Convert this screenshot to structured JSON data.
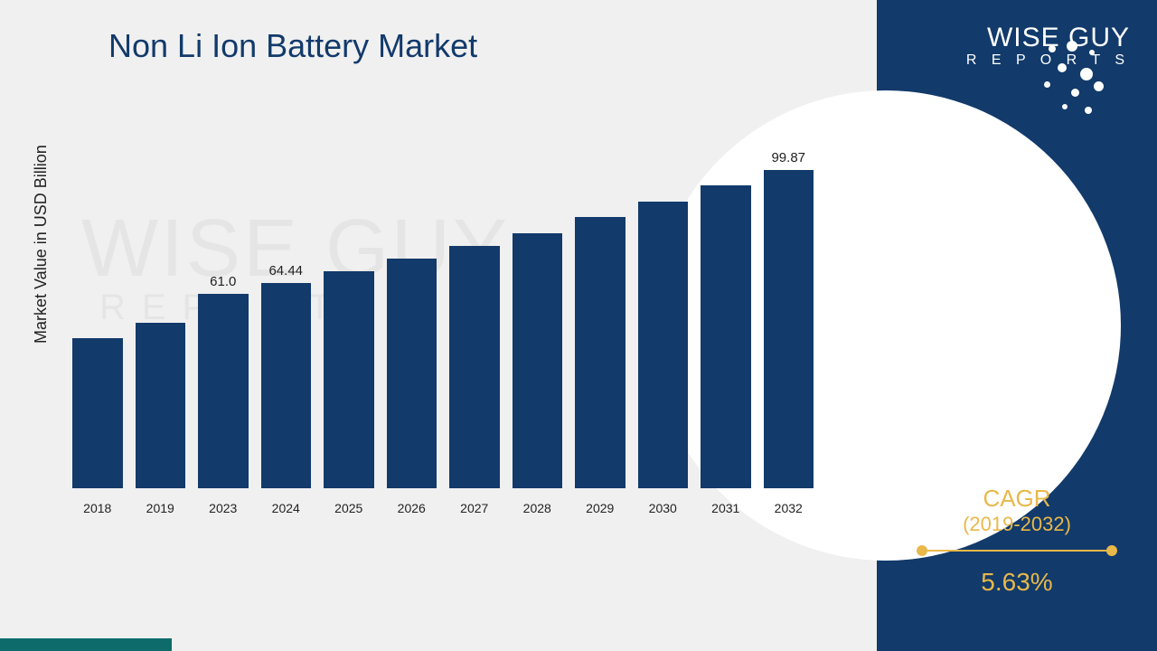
{
  "title": "Non Li Ion Battery Market",
  "y_axis_label": "Market Value in USD Billion",
  "logo": {
    "line1": "WISE GUY",
    "line2": "R E P O R T S"
  },
  "cagr": {
    "label": "CAGR",
    "period": "(2019-2032)",
    "value": "5.63%"
  },
  "chart": {
    "type": "bar",
    "bar_color": "#123a6b",
    "background_color": "#f0f0f0",
    "ylim_max": 105,
    "categories": [
      "2018",
      "2019",
      "2023",
      "2024",
      "2025",
      "2026",
      "2027",
      "2028",
      "2029",
      "2030",
      "2031",
      "2032"
    ],
    "values": [
      47,
      52,
      61.0,
      64.44,
      68,
      72,
      76,
      80,
      85,
      90,
      95,
      99.87
    ],
    "value_labels": [
      "",
      "",
      "61.0",
      "64.44",
      "",
      "",
      "",
      "",
      "",
      "",
      "",
      "99.87"
    ]
  },
  "watermark": {
    "line1": "WISE GUY",
    "line2": "REPORTS"
  },
  "colors": {
    "side_panel": "#123a6b",
    "accent_gold": "#e8b84a",
    "bottom_bar": "#0d6b6b",
    "white": "#ffffff"
  }
}
